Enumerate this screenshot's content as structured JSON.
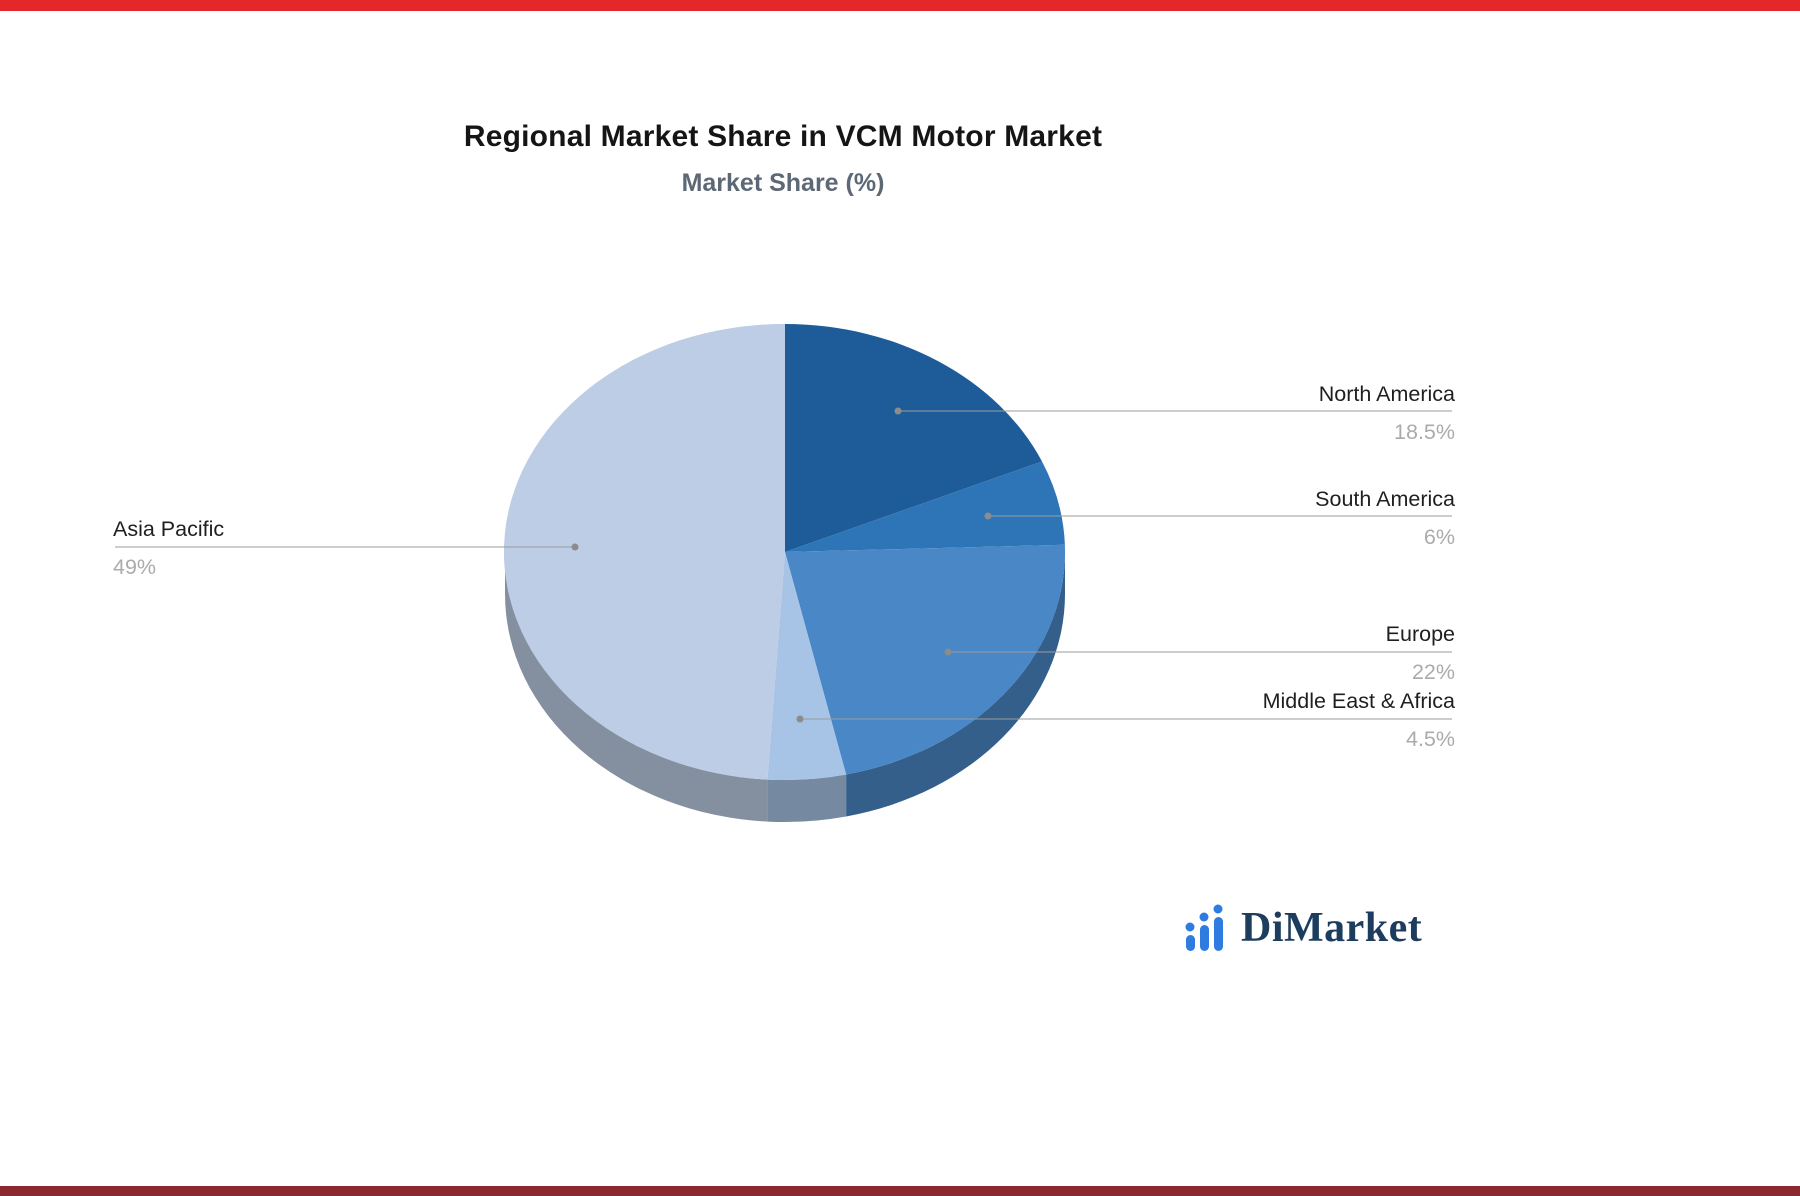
{
  "page": {
    "background": "#ffffff",
    "top_bar_color": "#e5262b",
    "bottom_bar_color": "#8a2a30"
  },
  "header": {
    "title": "Regional Market Share in VCM Motor Market",
    "subtitle": "Market Share (%)"
  },
  "chart_data": {
    "type": "pie",
    "style": "3d",
    "title": "Regional Market Share in VCM Motor Market",
    "subtitle": "Market Share (%)",
    "legend_position": "none",
    "start_angle_deg_from_top": 0,
    "direction": "clockwise",
    "labels": [
      "North America",
      "South America",
      "Europe",
      "Middle East & Africa",
      "Asia Pacific"
    ],
    "values": [
      18.5,
      6,
      22,
      4.5,
      49
    ],
    "value_labels": [
      "18.5%",
      "6%",
      "22%",
      "4.5%",
      "49%"
    ],
    "colors": [
      "#1e5c99",
      "#2e75b8",
      "#4a87c7",
      "#a7c4e6",
      "#bccde5"
    ]
  },
  "logo": {
    "text": "DiMarket",
    "icon": "bar-chart-icon",
    "text_color": "#1c3d5e",
    "icon_color": "#2f7ce0"
  }
}
